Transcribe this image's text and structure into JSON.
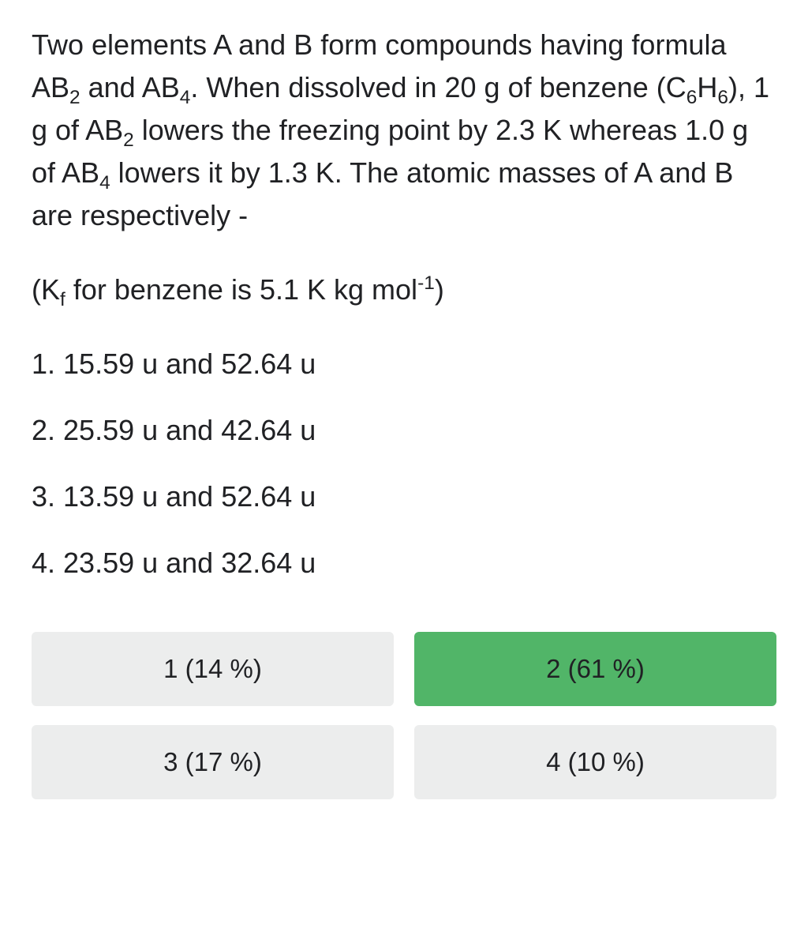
{
  "question": {
    "part1": "Two elements A and B form compounds having formula AB",
    "sub_ab2": "2",
    "part2": " and AB",
    "sub_ab4": "4",
    "part3": ". When dissolved in 20 g of benzene (C",
    "sub_c6": "6",
    "part4": "H",
    "sub_h6": "6",
    "part5": "), 1 g of AB",
    "sub_ab2b": "2",
    "part6": " lowers the freezing point by 2.3 K whereas 1.0 g of AB",
    "sub_ab4b": "4",
    "part7": " lowers it by 1.3 K. The atomic masses of A and B are respectively -"
  },
  "kf_line": {
    "open": "(K",
    "sub_f": "f",
    "mid": " for benzene is 5.1 K kg mol",
    "sup_neg1": "-1",
    "close": ")"
  },
  "options": {
    "opt1": "1. 15.59 u and 52.64 u",
    "opt2": "2. 25.59 u and 42.64 u",
    "opt3": "3. 13.59 u and 52.64 u",
    "opt4": "4. 23.59 u and 32.64 u"
  },
  "stats": {
    "b1": {
      "label": "1 (14 %)",
      "correct": false
    },
    "b2": {
      "label": "2 (61 %)",
      "correct": true
    },
    "b3": {
      "label": "3 (17 %)",
      "correct": false
    },
    "b4": {
      "label": "4 (10 %)",
      "correct": false
    }
  },
  "colors": {
    "default_bg": "#eceded",
    "correct_bg": "#51b568",
    "text": "#202124"
  }
}
